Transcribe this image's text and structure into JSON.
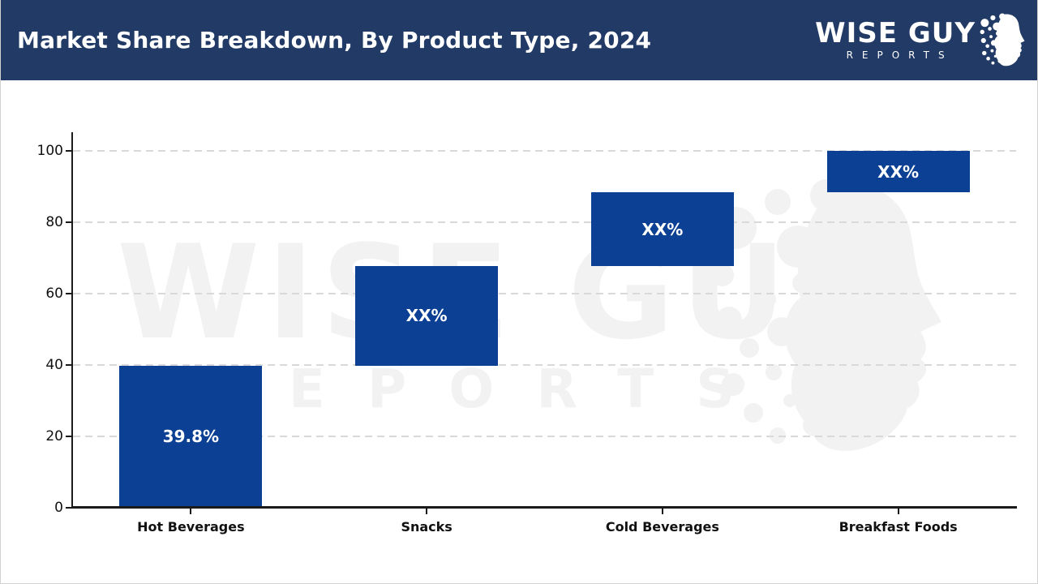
{
  "header": {
    "logo": {
      "line1": "WISE GUY",
      "line2": "REPORTS"
    }
  },
  "watermark": {
    "line1": "WISE GUY",
    "line2": "REPORTS"
  },
  "colors": {
    "header_navy": "#223a66",
    "bar_blue": "#0c4094",
    "bar_label_white": "#ffffff",
    "watermark_gray": "#f2f2f2",
    "grid_gray": "#d9d9d9",
    "axis_black": "#1a1a1a",
    "background": "#ffffff"
  },
  "chart_data": {
    "type": "bar",
    "subtype": "waterfall",
    "title": "Market Share Breakdown, By Product Type, 2024",
    "categories": [
      "Hot Beverages",
      "Snacks",
      "Cold Beverages",
      "Breakfast Foods"
    ],
    "segments": [
      {
        "category": "Hot Beverages",
        "start": 0,
        "end": 39.8,
        "label": "39.8%"
      },
      {
        "category": "Snacks",
        "start": 39.8,
        "end": 67.7,
        "label": "XX%"
      },
      {
        "category": "Cold Beverages",
        "start": 67.7,
        "end": 88.4,
        "label": "XX%"
      },
      {
        "category": "Breakfast Foods",
        "start": 88.4,
        "end": 100,
        "label": "XX%"
      }
    ],
    "xlabel": "",
    "ylabel": "",
    "ylim": [
      0,
      100
    ],
    "yticks": [
      0,
      20,
      40,
      60,
      80,
      100
    ],
    "grid": "horizontal-dashed",
    "legend": "none",
    "bar_value_note": "upper bars masked as XX% in source image"
  }
}
